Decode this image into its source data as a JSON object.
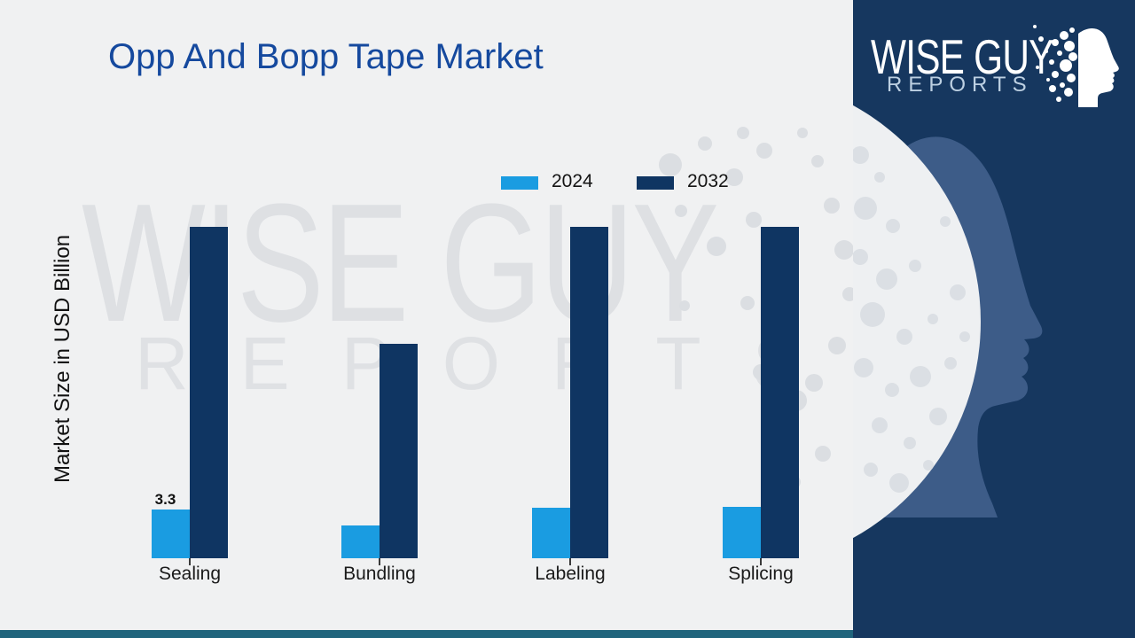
{
  "title": {
    "text": "Opp And Bopp Tape Market",
    "color": "#15499e"
  },
  "y_axis_label": "Market Size in USD Billion",
  "chart_data": {
    "type": "bar",
    "title": "Opp And Bopp Tape Market",
    "xlabel": "",
    "ylabel": "Market Size in USD Billion",
    "categories": [
      "Sealing",
      "Bundling",
      "Labeling",
      "Splicing"
    ],
    "series": [
      {
        "name": "2024",
        "color": "#1a9ce1",
        "values": [
          3.3,
          2.2,
          3.4,
          3.5
        ]
      },
      {
        "name": "2032",
        "color": "#0f3562",
        "values": [
          22.4,
          14.5,
          22.4,
          22.4
        ]
      }
    ],
    "value_labels": [
      {
        "category": "Sealing",
        "series": "2024",
        "text": "3.3"
      }
    ],
    "ylim": [
      0,
      23
    ],
    "grid": false,
    "y_axis_ticks_visible": false,
    "legend_position": "top-right"
  },
  "legend": {
    "items": [
      {
        "label": "2024",
        "color": "#1a9ce1"
      },
      {
        "label": "2032",
        "color": "#0f3562"
      }
    ]
  },
  "logo": {
    "wordmark": "WISE GUY",
    "subtext": "REPORTS",
    "panel_color": "#16375f",
    "wordmark_color": "#ffffff",
    "subtext_color": "#bdd0e2"
  },
  "watermark": {
    "wordmark": "WISE GUY",
    "subtext": "REPORTS"
  },
  "footer": {
    "strip_color": "#20647c"
  },
  "colors": {
    "background": "#f0f1f2",
    "series_2024": "#1a9ce1",
    "series_2032": "#0f3562",
    "brand_panel": "#16375f",
    "face_silhouette": "#3d5c88",
    "bottom_strip": "#20647c",
    "title_text": "#15499e"
  }
}
